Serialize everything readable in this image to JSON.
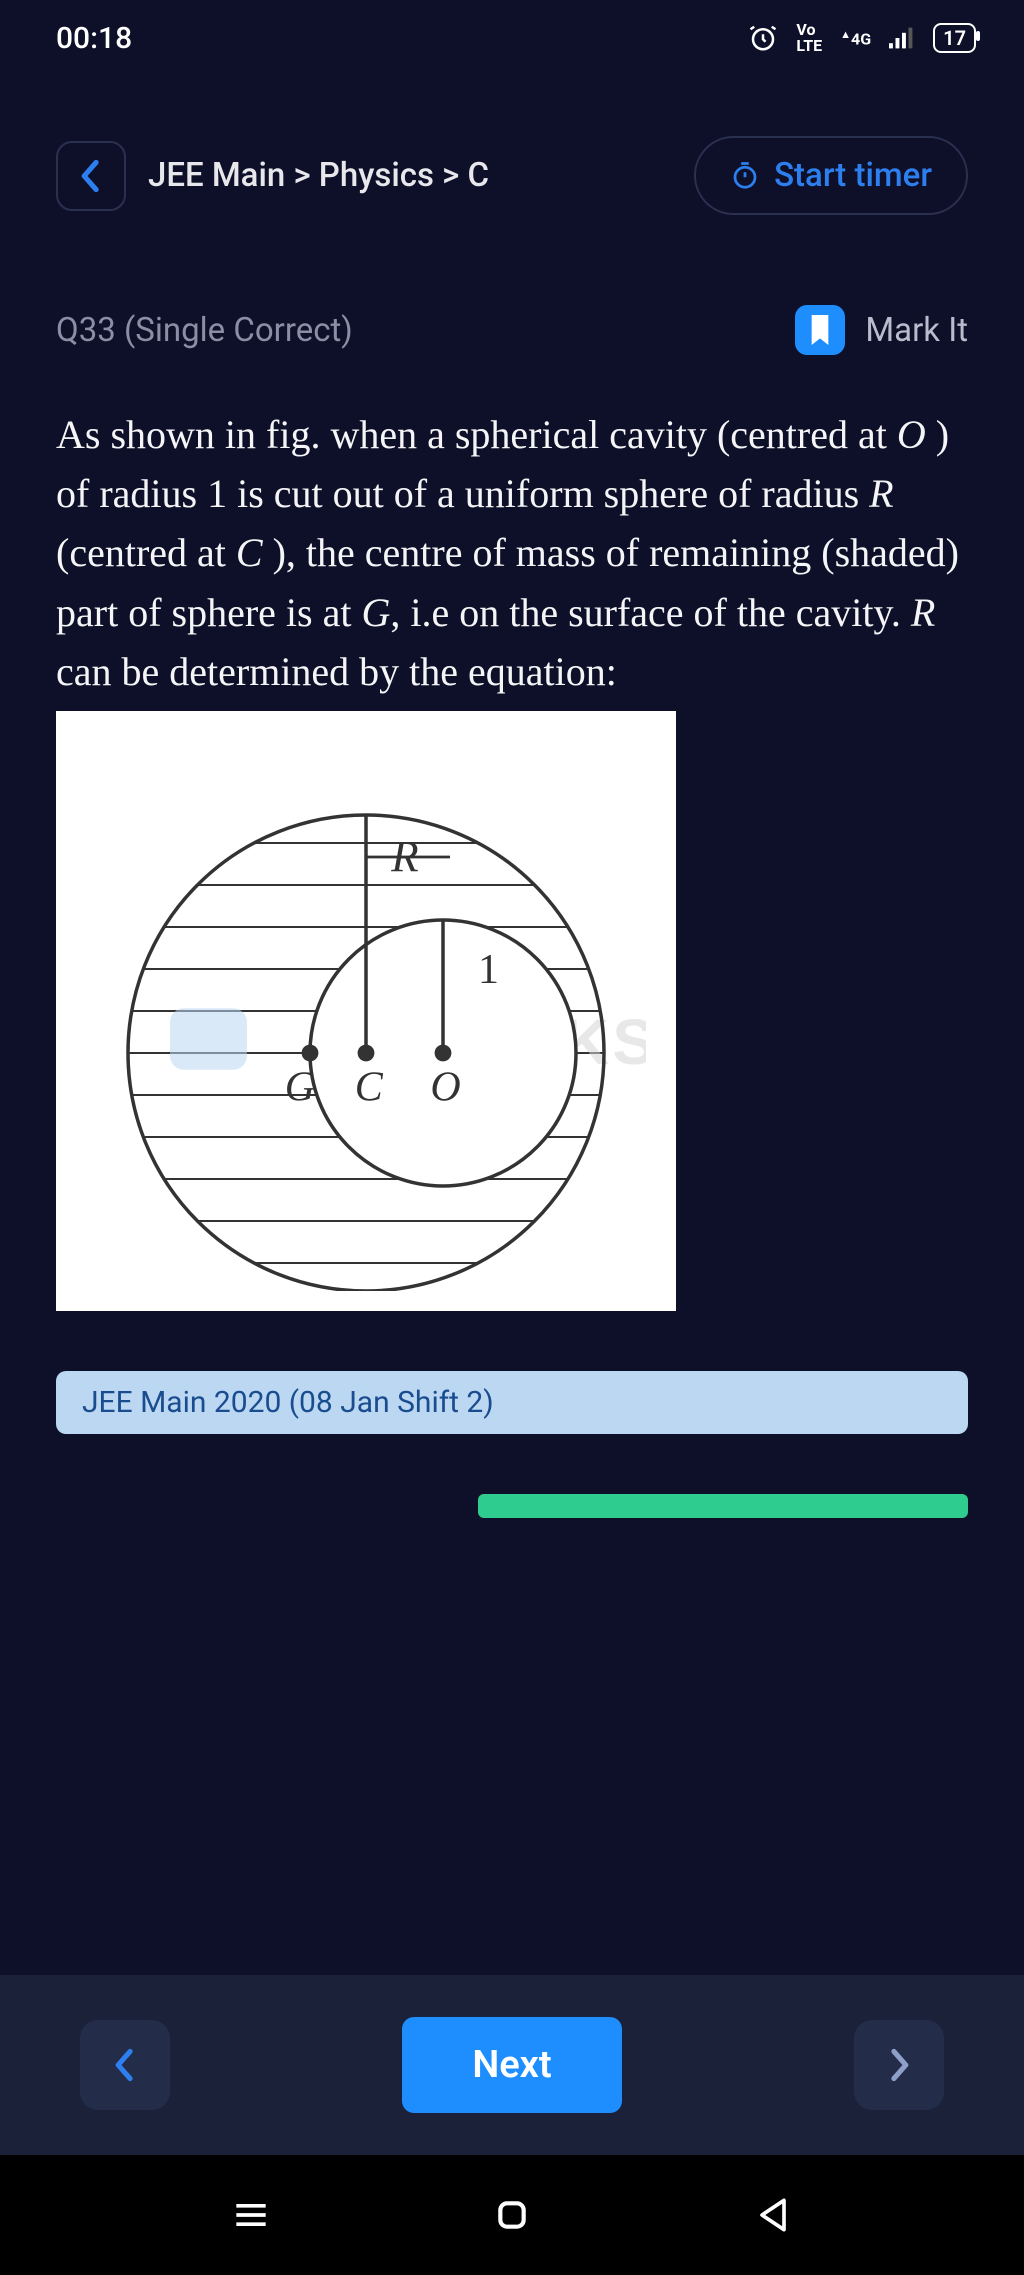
{
  "status": {
    "time": "00:18",
    "battery_text": "17"
  },
  "header": {
    "breadcrumb": "JEE Main > Physics > C",
    "start_timer_label": "Start timer"
  },
  "question_meta": {
    "id_label": "Q33 (Single Correct)",
    "mark_label": "Mark It"
  },
  "question": {
    "text_html": "As shown in fig. when a spherical cavity (centred at <span class='mathit'>O</span> ) of radius 1 is cut out of a uniform sphere of radius <span class='mathit'>R</span> (centred at <span class='mathit'>C</span> ), the centre of mass of remaining (shaded) part of sphere is at <span class='mathit'>G</span>, i.e on the surface of the cavity. <span class='mathit'>R</span> can be determined by the equation:"
  },
  "figure": {
    "type": "diagram",
    "outer_radius_label": "R",
    "inner_radius_label": "1",
    "point_G": "G",
    "point_C": "C",
    "point_O": "O",
    "colors": {
      "stroke": "#333333",
      "bg": "#ffffff",
      "watermark": "#d8e5ee",
      "watermark2": "#d8d8d8"
    },
    "watermark_text": "MARKS"
  },
  "tag": {
    "label": "JEE Main 2020 (08 Jan Shift 2)"
  },
  "bottom": {
    "next_label": "Next"
  },
  "colors": {
    "page_bg": "#0d1028",
    "accent_blue": "#1e8eff",
    "link_blue": "#2d7ff0",
    "muted_text": "#8a8fa5",
    "border": "#2a3050",
    "bottom_bg": "#1a2138",
    "green": "#2ecc8f",
    "chip_bg": "#bcd7f2",
    "chip_fg": "#1a4d8f"
  }
}
